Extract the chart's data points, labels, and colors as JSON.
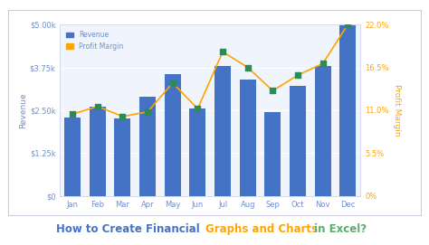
{
  "months": [
    "Jan",
    "Feb",
    "Mar",
    "Apr",
    "May",
    "Jun",
    "Jul",
    "Aug",
    "Sep",
    "Oct",
    "Nov",
    "Dec"
  ],
  "revenue": [
    2300,
    2600,
    2250,
    2900,
    3550,
    2550,
    3800,
    3400,
    2450,
    3200,
    3800,
    5000
  ],
  "profit_margin": [
    10.5,
    11.5,
    10.2,
    10.8,
    14.5,
    11.2,
    18.5,
    16.5,
    13.5,
    15.5,
    17.0,
    22.0
  ],
  "bar_color": "#4472C4",
  "line_color": "#FFA500",
  "marker_color": "#2D8B57",
  "revenue_ylim": [
    0,
    5000
  ],
  "profit_ylim": [
    0,
    22
  ],
  "revenue_yticks": [
    0,
    1250,
    2500,
    3750,
    5000
  ],
  "revenue_yticklabels": [
    "$0",
    "$1.25k",
    "$2.50k",
    "$3.75k",
    "$5.00k"
  ],
  "profit_yticks": [
    0,
    5.5,
    11.0,
    16.5,
    22.0
  ],
  "profit_yticklabels": [
    "0%",
    "5.5%",
    "11.0%",
    "16.5%",
    "22.0%"
  ],
  "ylabel_left": "Revenue",
  "ylabel_right": "Profit Margin",
  "chart_bg": "#f0f4fc",
  "fig_bg": "#ffffff",
  "legend_revenue": "Revenue",
  "legend_profit": "Profit Margin",
  "title_part1": "How to Create Financial ",
  "title_part2": "Graphs and Charts",
  "title_part3": " in Excel?",
  "title_color1": "#4472C4",
  "title_color2": "#FFA500",
  "title_color3": "#5BAD6F",
  "title_fontsize": 8.5,
  "tick_color_left": "#7090CC",
  "tick_color_right": "#FFA500",
  "grid_color": "#ffffff",
  "spine_color": "#d0d8ee"
}
